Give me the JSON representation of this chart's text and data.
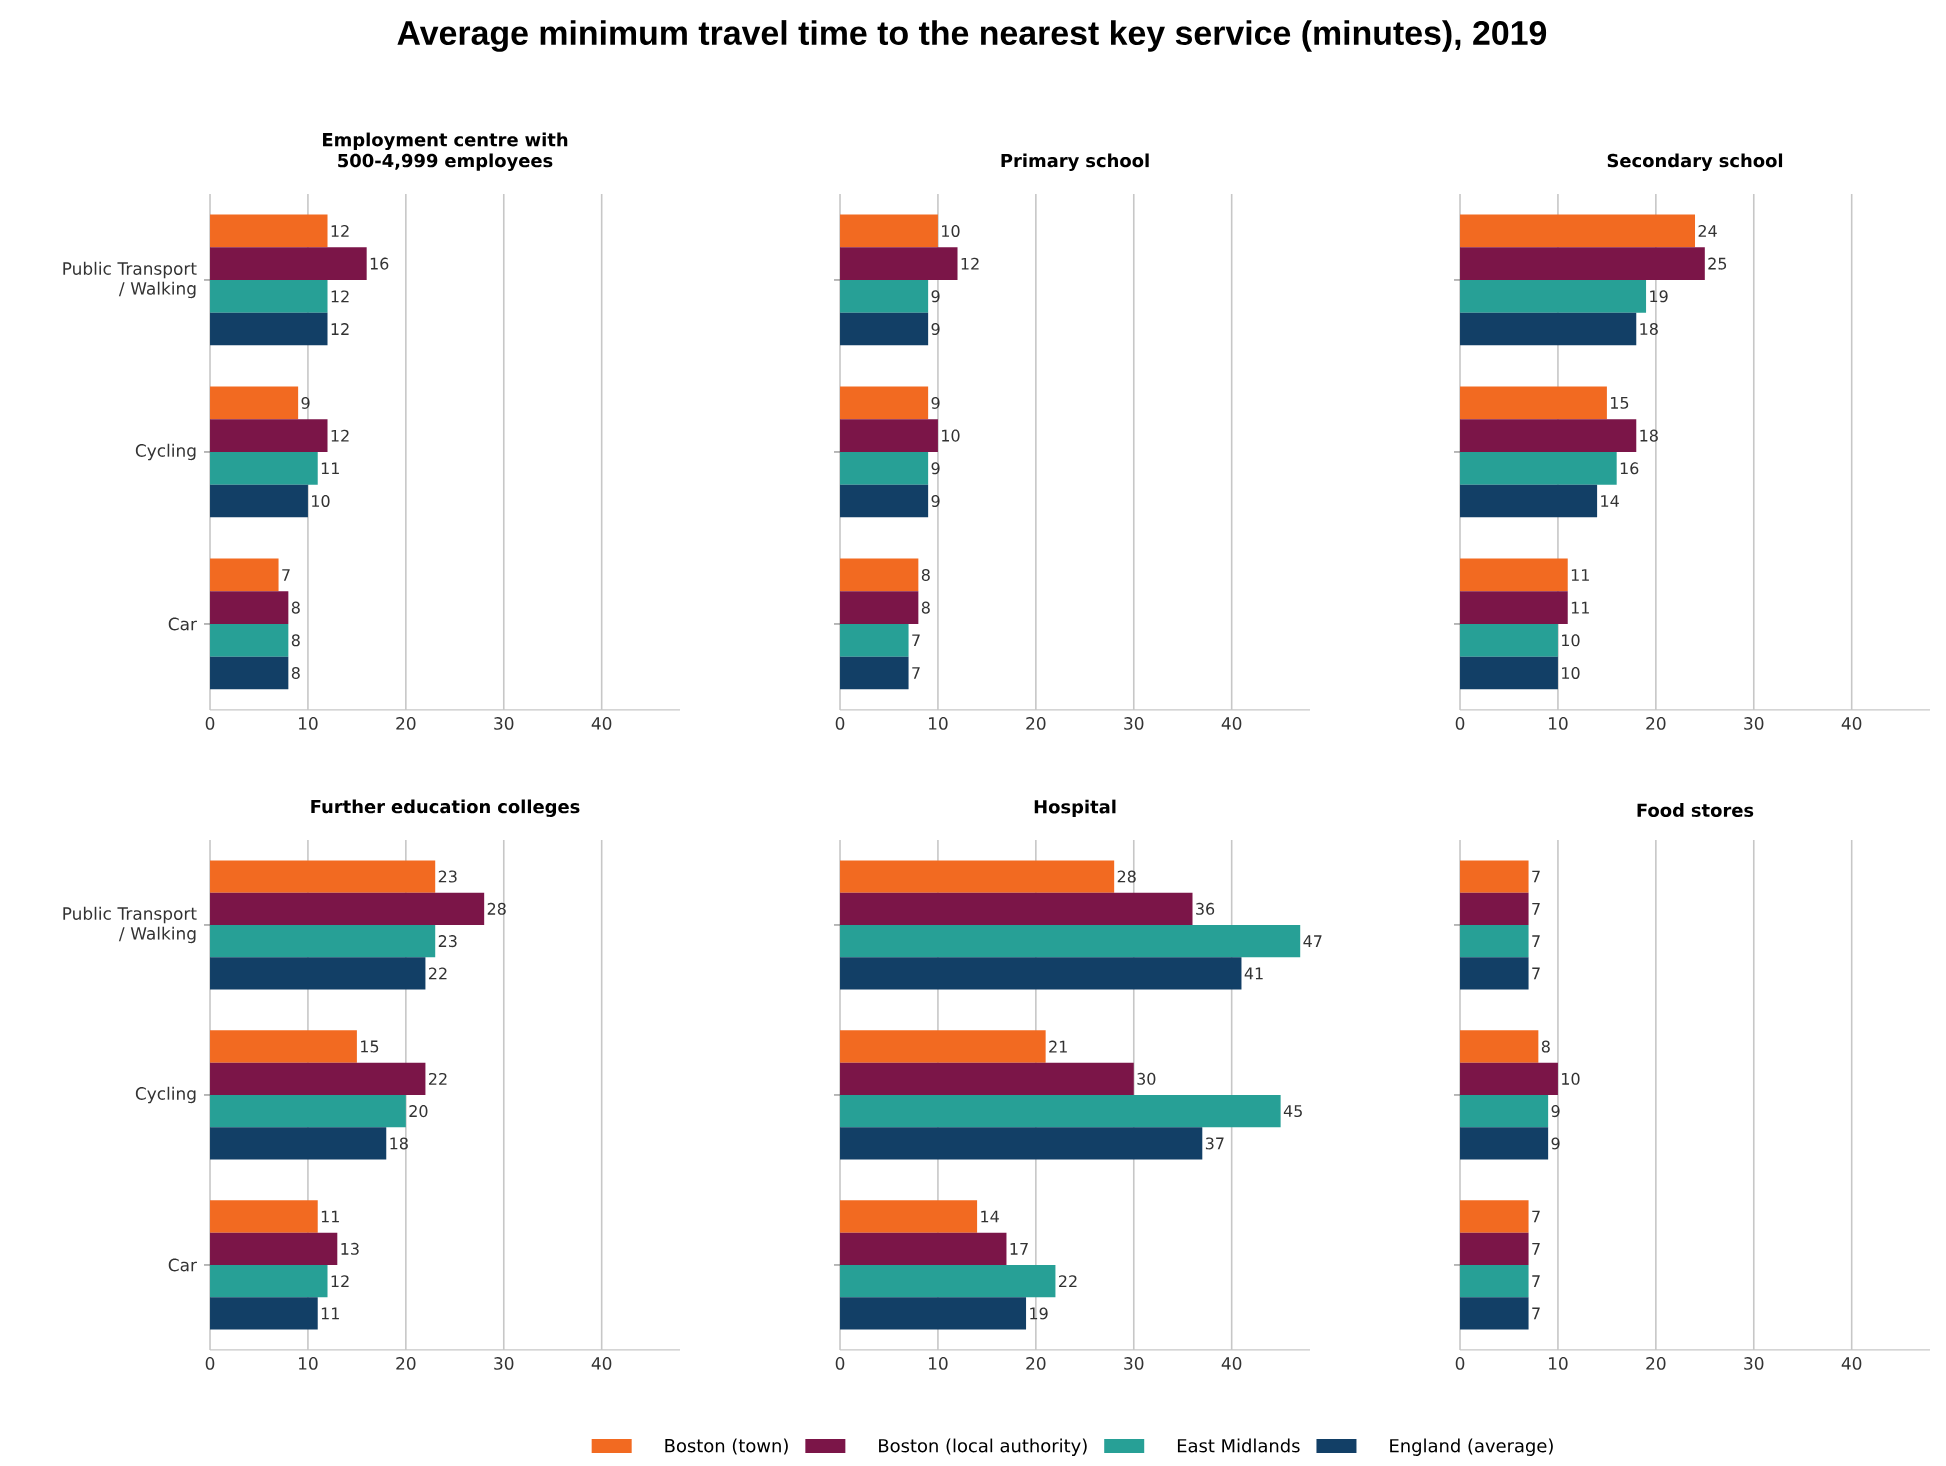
{
  "chart_data": [
    {
      "type": "bar",
      "orientation": "horizontal",
      "title": "Employment centre with 500-4,999 employees",
      "annotations": [
        "Average minimum travel time to the nearest key service (minutes), 2019"
      ],
      "categories": [
        "Public Transport / Walking",
        "Cycling",
        "Car"
      ],
      "xlim": [
        0,
        48
      ],
      "xticks": [
        0,
        10,
        20,
        30,
        40
      ],
      "grid": "x",
      "data_labels": true,
      "series": [
        {
          "color": "#f26a21",
          "values": [
            12,
            9,
            7
          ]
        },
        {
          "color": "#7b1548",
          "values": [
            16,
            12,
            8
          ]
        },
        {
          "color": "#27a096",
          "values": [
            12,
            11,
            8
          ]
        },
        {
          "color": "#123f66",
          "values": [
            12,
            10,
            8
          ]
        }
      ]
    },
    {
      "type": "bar",
      "orientation": "horizontal",
      "title": "Primary school",
      "categories": [
        null,
        null,
        null
      ],
      "xlim": [
        0,
        48
      ],
      "xticks": [
        0,
        10,
        20,
        30,
        40
      ],
      "grid": "x",
      "data_labels": true,
      "tick_labels": "x",
      "series": [
        {
          "color": "#f26a21",
          "values": [
            10,
            9,
            8
          ]
        },
        {
          "color": "#7b1548",
          "values": [
            12,
            10,
            8
          ]
        },
        {
          "color": "#27a096",
          "values": [
            9,
            9,
            7
          ]
        },
        {
          "color": "#123f66",
          "values": [
            9,
            9,
            7
          ]
        }
      ]
    },
    {
      "type": "bar",
      "orientation": "horizontal",
      "title": "Secondary school",
      "categories": [
        null,
        null,
        null
      ],
      "xlim": [
        0,
        48
      ],
      "xticks": [
        0,
        10,
        20,
        30,
        40
      ],
      "grid": "x",
      "data_labels": true,
      "tick_labels": "x",
      "series": [
        {
          "color": "#f26a21",
          "values": [
            24,
            15,
            11
          ]
        },
        {
          "color": "#7b1548",
          "values": [
            25,
            18,
            11
          ]
        },
        {
          "color": "#27a096",
          "values": [
            19,
            16,
            10
          ]
        },
        {
          "color": "#123f66",
          "values": [
            18,
            14,
            10
          ]
        }
      ]
    },
    {
      "type": "bar",
      "orientation": "horizontal",
      "title": "Further education colleges",
      "categories": [
        "Public Transport / Walking",
        "Cycling",
        "Car"
      ],
      "xlim": [
        0,
        48
      ],
      "xticks": [
        0,
        10,
        20,
        30,
        40
      ],
      "grid": "x",
      "data_labels": true,
      "series": [
        {
          "color": "#f26a21",
          "values": [
            23,
            15,
            11
          ]
        },
        {
          "color": "#7b1548",
          "values": [
            28,
            22,
            13
          ]
        },
        {
          "color": "#27a096",
          "values": [
            23,
            20,
            12
          ]
        },
        {
          "color": "#123f66",
          "values": [
            22,
            18,
            11
          ]
        }
      ]
    },
    {
      "type": "bar",
      "orientation": "horizontal",
      "title": "Hospital",
      "categories": [
        null,
        null,
        null
      ],
      "xlim": [
        0,
        48
      ],
      "xticks": [
        0,
        10,
        20,
        30,
        40
      ],
      "grid": "x",
      "data_labels": true,
      "tick_labels": "x",
      "legend": "bottom",
      "series": [
        {
          "name": "Boston (town)",
          "color": "#f26a21",
          "values": [
            28,
            21,
            14
          ]
        },
        {
          "name": "Boston (local authority)",
          "color": "#7b1548",
          "values": [
            36,
            30,
            17
          ]
        },
        {
          "name": "East Midlands",
          "color": "#27a096",
          "values": [
            47,
            45,
            22
          ]
        },
        {
          "name": "England (average)",
          "color": "#123f66",
          "values": [
            41,
            37,
            19
          ]
        }
      ]
    },
    {
      "type": "bar",
      "orientation": "horizontal",
      "title": "Food stores",
      "categories": [
        null,
        null,
        null
      ],
      "xlim": [
        0,
        48
      ],
      "xticks": [
        0,
        10,
        20,
        30,
        40
      ],
      "grid": "x",
      "data_labels": true,
      "tick_labels": "x",
      "series": [
        {
          "color": "#f26a21",
          "values": [
            7,
            8,
            7
          ]
        },
        {
          "color": "#7b1548",
          "values": [
            7,
            10,
            7
          ]
        },
        {
          "color": "#27a096",
          "values": [
            7,
            9,
            7
          ]
        },
        {
          "color": "#123f66",
          "values": [
            7,
            9,
            7
          ]
        }
      ]
    }
  ]
}
